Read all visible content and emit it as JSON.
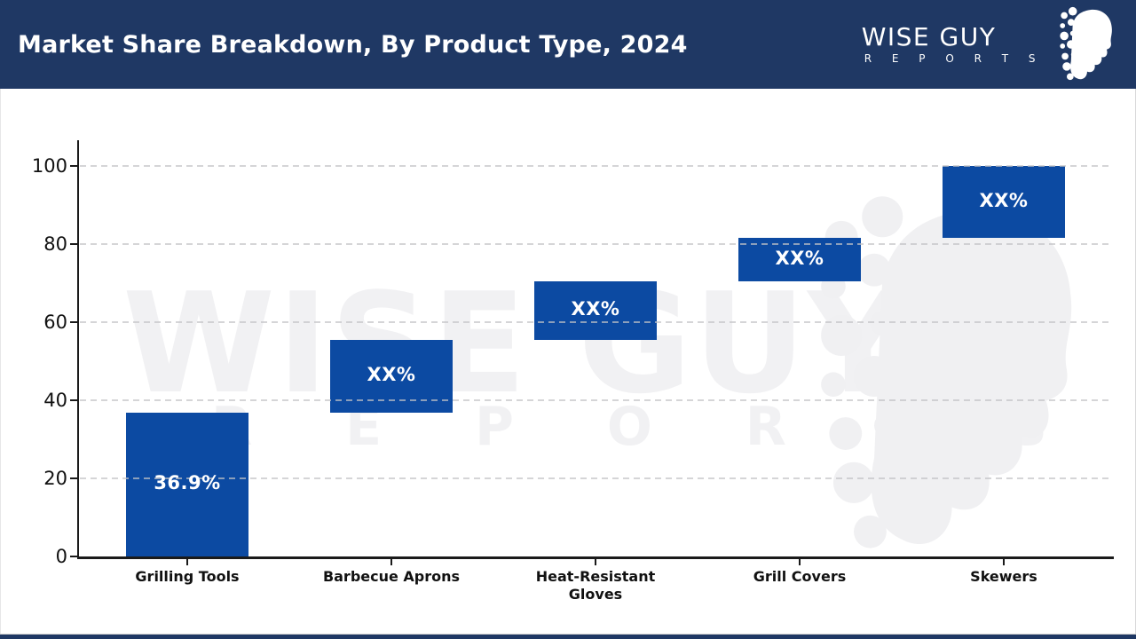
{
  "header": {
    "title": "Market Share Breakdown, By Product Type, 2024",
    "bg_color": "#1f3864",
    "brand": {
      "line1": "WISE GUY",
      "line2": "R E P O R T S"
    }
  },
  "watermark": {
    "line1": "WISE GUY",
    "line2": "R E P O R T S",
    "color": "#f1f1f3"
  },
  "chart_data": {
    "type": "bar",
    "subtype": "waterfall",
    "title": "Market Share Breakdown, By Product Type, 2024",
    "xlabel": "",
    "ylabel": "",
    "ylim": [
      0,
      106
    ],
    "yticks": [
      0,
      20,
      40,
      60,
      80,
      100
    ],
    "grid": true,
    "gridline_color": "#c8c8cb",
    "bar_color": "#0c4aa2",
    "bar_label_color": "#ffffff",
    "categories": [
      "Grilling Tools",
      "Barbecue Aprons",
      "Heat-Resistant Gloves",
      "Grill Covers",
      "Skewers"
    ],
    "segments": [
      {
        "category": "Grilling Tools",
        "start": 0,
        "end": 36.9,
        "label": "36.9%"
      },
      {
        "category": "Barbecue Aprons",
        "start": 36.9,
        "end": 55.5,
        "label": "XX%"
      },
      {
        "category": "Heat-Resistant Gloves",
        "start": 55.5,
        "end": 70.4,
        "label": "XX%"
      },
      {
        "category": "Grill Covers",
        "start": 70.4,
        "end": 81.5,
        "label": "XX%"
      },
      {
        "category": "Skewers",
        "start": 81.5,
        "end": 100,
        "label": "XX%"
      }
    ]
  }
}
